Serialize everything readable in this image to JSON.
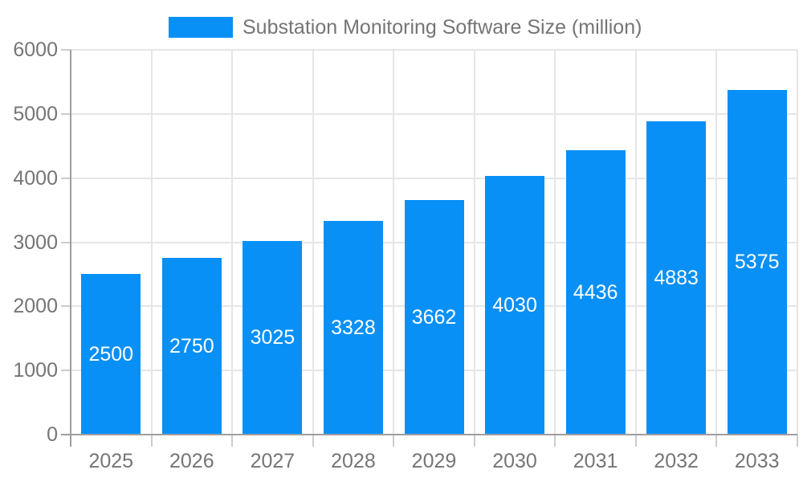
{
  "chart_data": {
    "type": "bar",
    "title": "Substation Monitoring Software Size (million)",
    "legend": {
      "label": "Substation Monitoring Software Size (million)",
      "position": "top"
    },
    "categories": [
      "2025",
      "2026",
      "2027",
      "2028",
      "2029",
      "2030",
      "2031",
      "2032",
      "2033"
    ],
    "series": [
      {
        "name": "Substation Monitoring Software Size (million)",
        "values": [
          2500,
          2750,
          3025,
          3328,
          3662,
          4030,
          4436,
          4883,
          5375
        ]
      }
    ],
    "xlabel": "",
    "ylabel": "",
    "ylim": [
      0,
      6000
    ],
    "y_ticks": [
      0,
      1000,
      2000,
      3000,
      4000,
      5000,
      6000
    ],
    "grid": true,
    "value_labels_inside_bars": true,
    "colors": {
      "bar": "#0890f6",
      "grid": "#e6e6e6",
      "axis_line": "#9e9e9e",
      "tick_mark": "#cccccc",
      "axis_text": "#757575",
      "value_label": "#ffffff",
      "background": "#ffffff"
    }
  }
}
